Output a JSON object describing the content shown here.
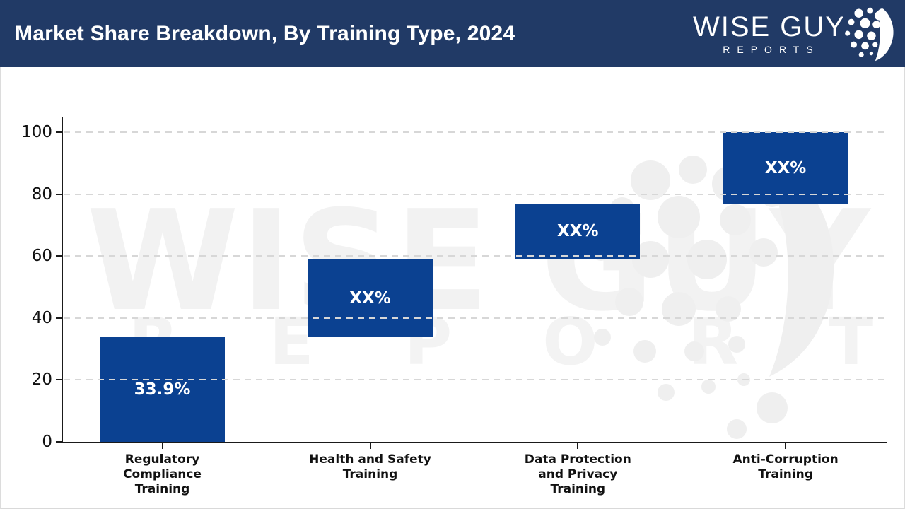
{
  "header": {
    "title": "Market Share Breakdown, By Training Type, 2024",
    "bg_color": "#213a66",
    "logo": {
      "line1": "WISE GUY",
      "line2": "REPORTS"
    }
  },
  "watermark": {
    "line1": "WISE GUY",
    "line2": "R E P O R T S"
  },
  "chart_data": {
    "type": "bar",
    "variant": "waterfall",
    "title": "Market Share Breakdown, By Training Type, 2024",
    "categories": [
      [
        "Regulatory",
        "Compliance",
        "Training"
      ],
      [
        "Health and Safety",
        "Training"
      ],
      [
        "Data Protection",
        "and Privacy",
        "Training"
      ],
      [
        "Anti-Corruption",
        "Training"
      ]
    ],
    "segments": [
      {
        "start": 0,
        "end": 33.9,
        "value_label": "33.9%"
      },
      {
        "start": 33.9,
        "end": 59.0,
        "value_label": "XX%"
      },
      {
        "start": 59.0,
        "end": 76.9,
        "value_label": "XX%"
      },
      {
        "start": 76.9,
        "end": 100,
        "value_label": "XX%"
      }
    ],
    "yticks": [
      0,
      20,
      40,
      60,
      80,
      100
    ],
    "ylim": [
      0,
      105
    ],
    "xlabel": "",
    "ylabel": "",
    "bar_color": "#0b4191",
    "grid": {
      "style": "dashed",
      "axis": "y",
      "color": "#d7d7d7",
      "drawn_over_bars": true
    },
    "legend": null,
    "axis_color": "#1a1a1a"
  }
}
